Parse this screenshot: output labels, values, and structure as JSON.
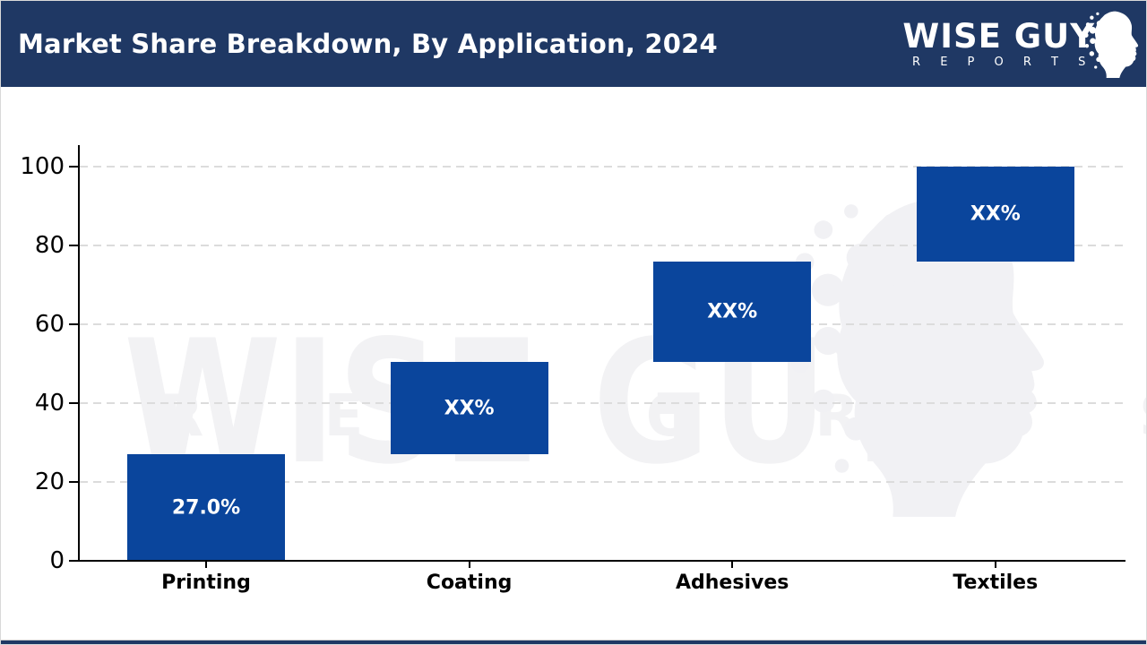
{
  "header": {
    "title": "Market Share Breakdown, By Application, 2024",
    "bg_color": "#1f3864",
    "logo": {
      "line1": "WISE GUY",
      "line2": "R E P O R T S"
    }
  },
  "watermark": {
    "line1": "WISE GUY",
    "line2": "R E P O R T S"
  },
  "chart_data": {
    "type": "bar",
    "variant": "waterfall",
    "title": "Market Share Breakdown, By Application, 2024",
    "categories": [
      "Printing",
      "Coating",
      "Adhesives",
      "Textiles"
    ],
    "segments": [
      {
        "category": "Printing",
        "start": 0,
        "end": 27,
        "label": "27.0%"
      },
      {
        "category": "Coating",
        "start": 27,
        "end": 50.5,
        "label": "XX%"
      },
      {
        "category": "Adhesives",
        "start": 50.5,
        "end": 76,
        "label": "XX%"
      },
      {
        "category": "Textiles",
        "start": 76,
        "end": 100,
        "label": "XX%"
      }
    ],
    "yticks": [
      0,
      20,
      40,
      60,
      80,
      100
    ],
    "ylim": [
      0,
      105
    ],
    "grid": "horizontal-dashed",
    "legend": "none",
    "colors": {
      "bar": "#0a459c",
      "bar_label": "#ffffff",
      "axis": "#000000",
      "grid": "#dcdcdc",
      "header_bg": "#1f3864",
      "watermark": "#f2f2f4"
    }
  },
  "footer": {
    "bar_color": "#1f3864"
  }
}
